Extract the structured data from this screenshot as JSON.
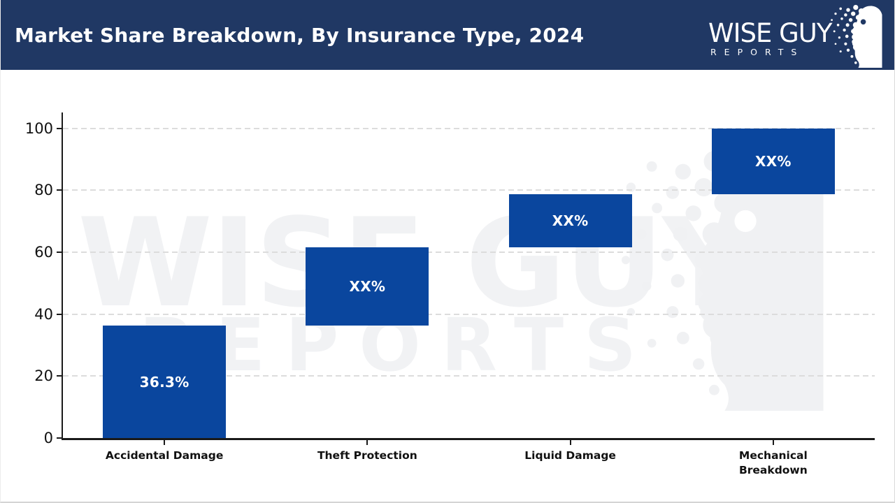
{
  "header": {
    "title": "Market Share Breakdown, By Insurance Type, 2024",
    "logo": {
      "line1": "WISE GUY",
      "line2": "REPORTS",
      "head_icon": "dotted-head-profile-icon"
    }
  },
  "watermark": {
    "line1": "WISE GUY",
    "line2": "REPORTS"
  },
  "colors": {
    "header_bg": "#203864",
    "bar": "#0a469e",
    "bar_label": "#ffffff",
    "gridline": "#dcdcdc",
    "axis": "#1a1a1a",
    "tick_label": "#111111",
    "watermark": "#f1f2f4",
    "title_text": "#ffffff"
  },
  "chart_data": {
    "type": "bar",
    "subtype": "waterfall",
    "title": "Market Share Breakdown, By Insurance Type, 2024",
    "categories": [
      "Accidental Damage",
      "Theft Protection",
      "Liquid Damage",
      "Mechanical Breakdown"
    ],
    "segments": [
      {
        "category": "Accidental Damage",
        "start": 0,
        "end": 36.3,
        "label": "36.3%"
      },
      {
        "category": "Theft Protection",
        "start": 36.3,
        "end": 61.6,
        "label": "XX%"
      },
      {
        "category": "Liquid Damage",
        "start": 61.6,
        "end": 78.7,
        "label": "XX%"
      },
      {
        "category": "Mechanical Breakdown",
        "start": 78.7,
        "end": 100,
        "label": "XX%"
      }
    ],
    "yticks": [
      0,
      20,
      40,
      60,
      80,
      100
    ],
    "ylim": [
      0,
      104
    ],
    "xlabel": "",
    "ylabel": "",
    "grid": "horizontal dashed",
    "legend": "none"
  }
}
